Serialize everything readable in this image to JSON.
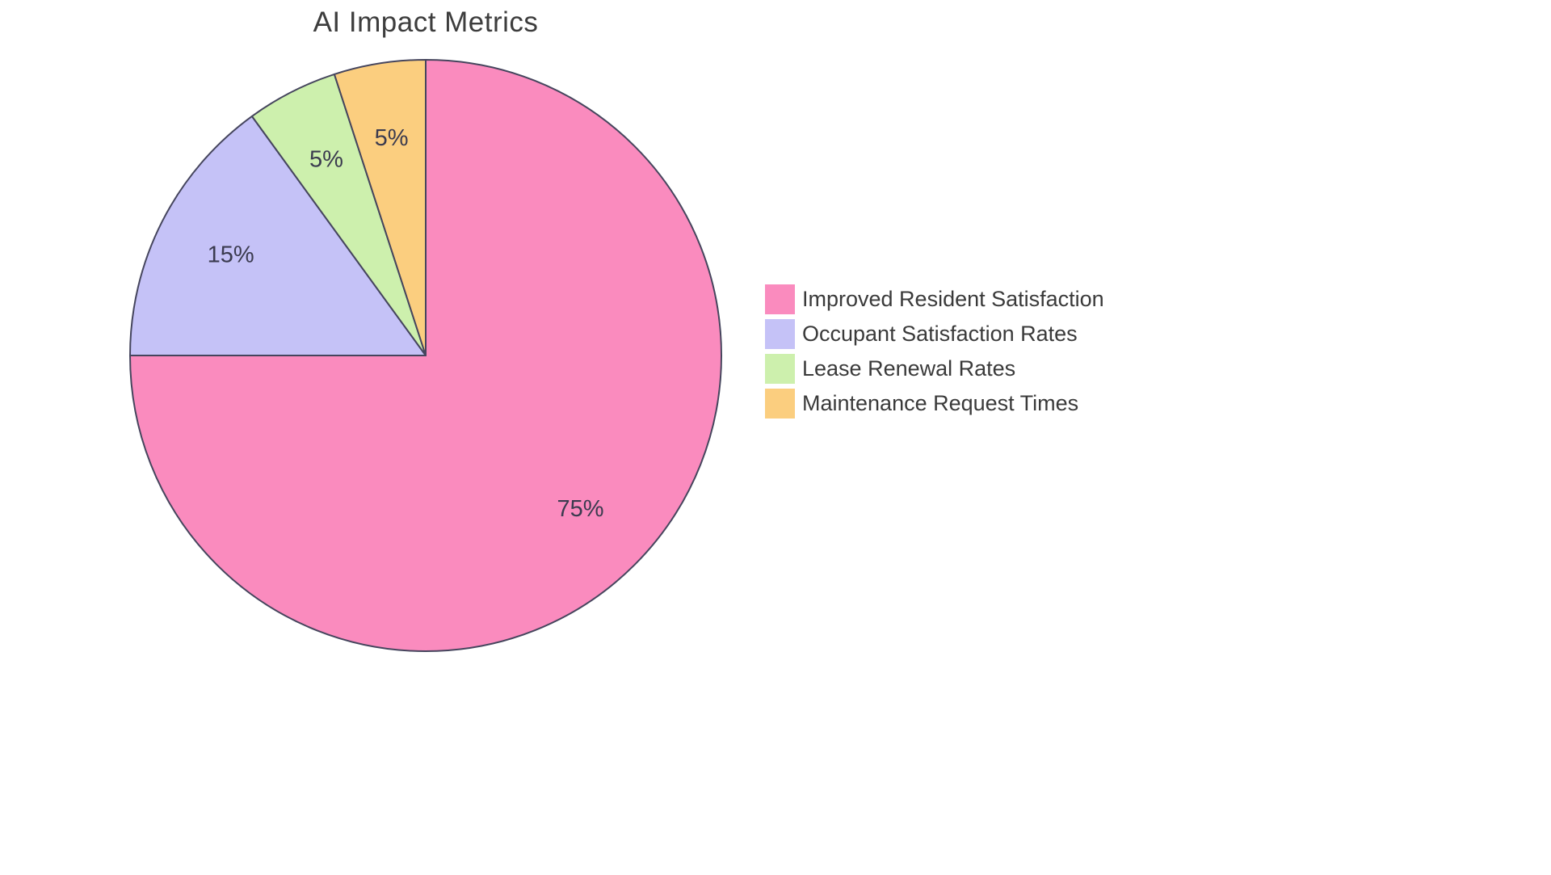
{
  "page": {
    "background_color": "#FFFFFF"
  },
  "chart_data": {
    "type": "pie",
    "title": "AI Impact Metrics",
    "start_angle_deg": 0,
    "direction": "clockwise",
    "legend_position": "right",
    "slice_border_color": "#45455D",
    "slice_border_width": 2,
    "percent_label_color": "#3B3B4F",
    "title_color": "#3D3D3D",
    "legend_text_color": "#3A3A3A",
    "slices": [
      {
        "label": "Improved Resident Satisfaction",
        "value": 75,
        "display": "75%",
        "color": "#FA8BBE"
      },
      {
        "label": "Occupant Satisfaction Rates",
        "value": 15,
        "display": "15%",
        "color": "#C5C2F7"
      },
      {
        "label": "Lease Renewal Rates",
        "value": 5,
        "display": "5%",
        "color": "#CDF0AD"
      },
      {
        "label": "Maintenance Request Times",
        "value": 5,
        "display": "5%",
        "color": "#FBCE7F"
      }
    ]
  }
}
